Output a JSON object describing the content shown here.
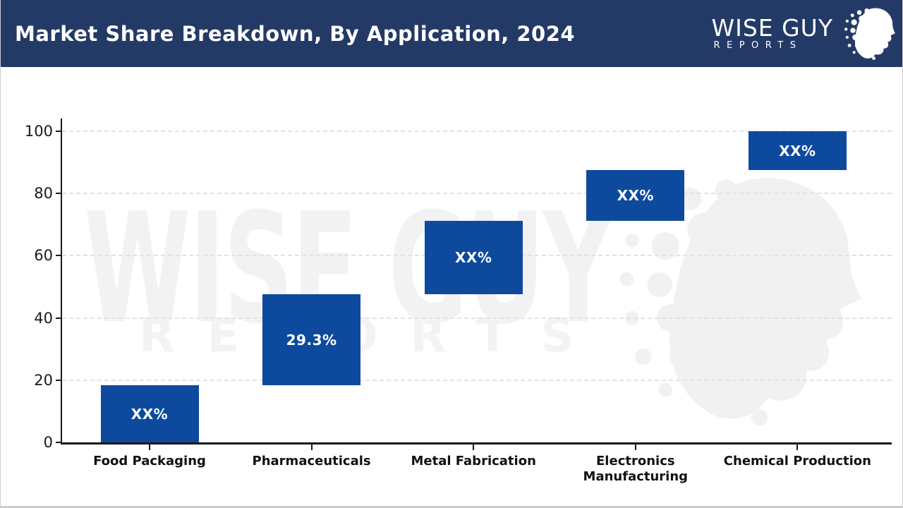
{
  "header": {
    "title": "Market Share Breakdown, By Application, 2024",
    "bg_color": "#233a66",
    "logo": {
      "line1": "WISE GUY",
      "line2": "REPORTS"
    }
  },
  "watermark": {
    "line1": "WISE GUY",
    "line2": "REPORTS"
  },
  "chart_data": {
    "type": "bar",
    "subtype": "waterfall",
    "title": "Market Share Breakdown, By Application, 2024",
    "categories": [
      "Food Packaging",
      "Pharmaceuticals",
      "Metal Fabrication",
      "Electronics Manufacturing",
      "Chemical Production"
    ],
    "series": [
      {
        "name": "Market Share (%)",
        "starts": [
          0,
          18.3,
          47.6,
          71.2,
          87.5
        ],
        "ends": [
          18.3,
          47.6,
          71.2,
          87.5,
          100
        ]
      }
    ],
    "bar_labels": [
      "XX%",
      "29.3%",
      "XX%",
      "XX%",
      "XX%"
    ],
    "xlabel": "",
    "ylabel": "",
    "yticks": [
      0,
      20,
      40,
      60,
      80,
      100
    ],
    "ylim": [
      0,
      105
    ],
    "grid": "horizontal-dashed",
    "legend": "none",
    "bar_color": "#0d4a9e",
    "bar_label_color": "#ffffff",
    "axis_color": "#1a1a1a",
    "grid_color": "#e2e2e2"
  }
}
